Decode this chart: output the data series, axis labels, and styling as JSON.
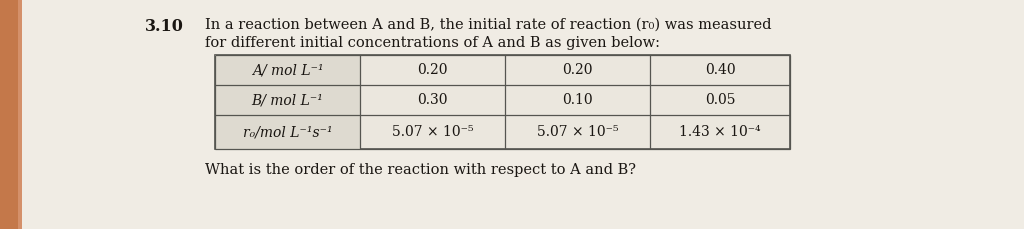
{
  "question_number": "3.10",
  "intro_text_line1": "In a reaction between A and B, the initial rate of reaction (r₀) was measured",
  "intro_text_line2": "for different initial concentrations of A and B as given below:",
  "table_rows": [
    [
      "A/ mol L⁻¹",
      "0.20",
      "0.20",
      "0.40"
    ],
    [
      "B/ mol L⁻¹",
      "0.30",
      "0.10",
      "0.05"
    ],
    [
      "r₀/mol L⁻¹s⁻¹",
      "5.07 × 10⁻⁵",
      "5.07 × 10⁻⁵",
      "1.43 × 10⁻⁴"
    ]
  ],
  "footer_text": "What is the order of the reaction with respect to A and B?",
  "bg_color": "#e8e4dc",
  "page_color": "#f0ece4",
  "table_bg": "#ebe7de",
  "table_header_col_bg": "#dedad0",
  "table_border_color": "#555550",
  "text_color": "#1a1612",
  "left_bar_color": "#c4784a",
  "font_size_qnum": 11.5,
  "font_size_main": 10.5,
  "font_size_table": 10.0
}
